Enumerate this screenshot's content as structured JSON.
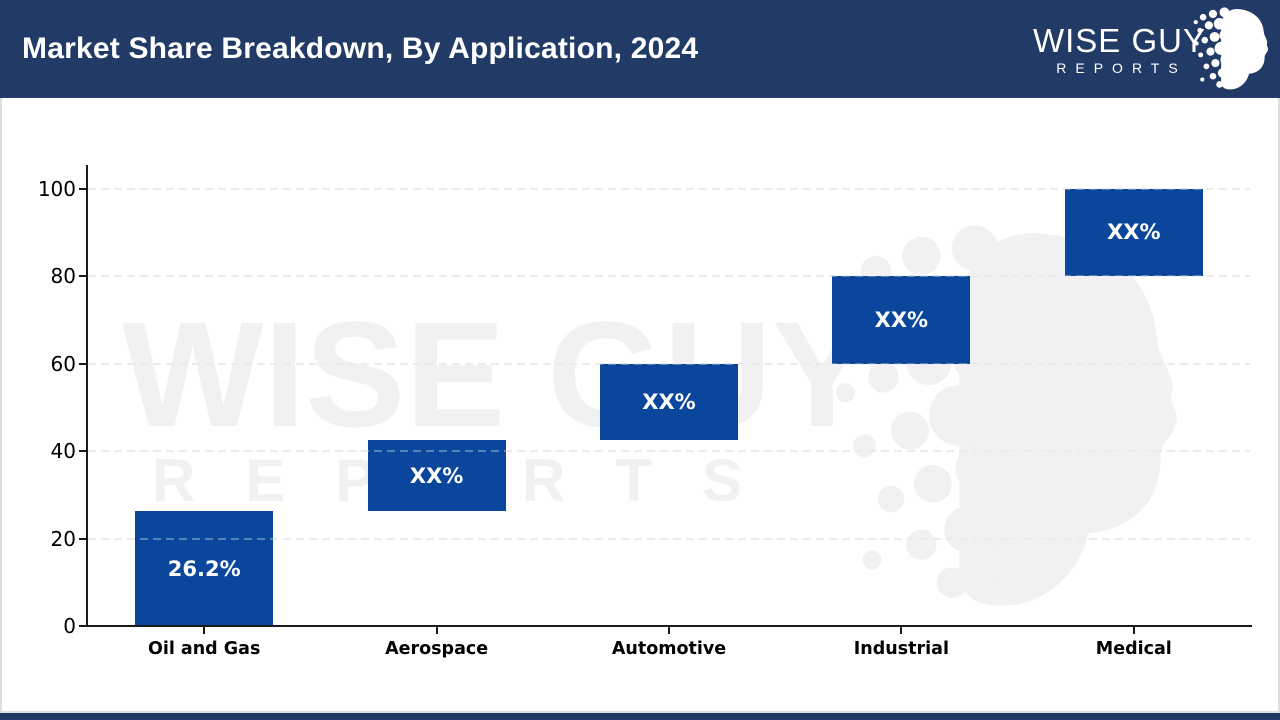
{
  "header": {
    "title": "Market Share Breakdown, By Application, 2024",
    "logo": {
      "line1": "WISE GUY",
      "line2": "REPORTS"
    }
  },
  "watermark": {
    "line1": "WISE GUY",
    "line2": "REPORTS"
  },
  "colors": {
    "header_bg": "#213a66",
    "footer_bg": "#213a66",
    "bar": "#0a479c",
    "bar_label": "#ffffff",
    "axis": "#1a1a1a",
    "gridline": "#e2e2e2",
    "watermark": "#f1f1f4",
    "title_text": "#ffffff"
  },
  "chart_data": {
    "type": "bar",
    "subtype": "waterfall",
    "title": "Market Share Breakdown, By Application, 2024",
    "categories": [
      "Oil and Gas",
      "Aerospace",
      "Automotive",
      "Industrial",
      "Medical"
    ],
    "segments": [
      {
        "category": "Oil and Gas",
        "start": 0,
        "end": 26.2,
        "label": "26.2%"
      },
      {
        "category": "Aerospace",
        "start": 26.2,
        "end": 42.5,
        "label": "XX%"
      },
      {
        "category": "Automotive",
        "start": 42.5,
        "end": 60,
        "label": "XX%"
      },
      {
        "category": "Industrial",
        "start": 60,
        "end": 80,
        "label": "XX%"
      },
      {
        "category": "Medical",
        "start": 80,
        "end": 100,
        "label": "XX%"
      }
    ],
    "xlabel": "",
    "ylabel": "",
    "ylim": [
      0,
      100
    ],
    "yticks": [
      0,
      20,
      40,
      60,
      80,
      100
    ],
    "grid": true,
    "grid_style": "dashed",
    "legend": false
  }
}
